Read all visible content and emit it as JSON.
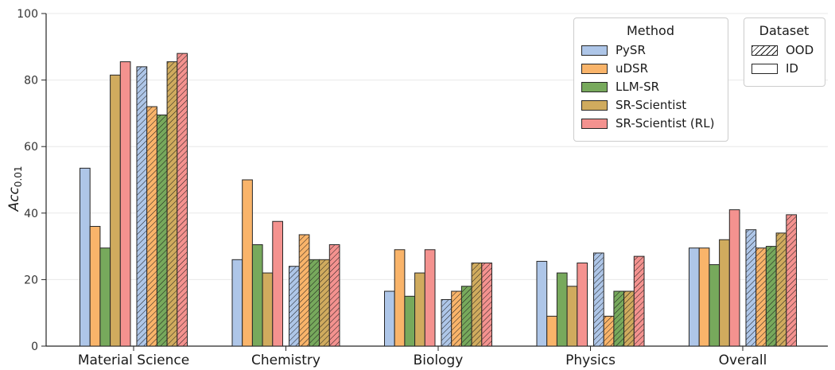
{
  "chart_data": {
    "type": "bar",
    "title": "",
    "ylabel_main": "Acc",
    "ylabel_sub": "0.01",
    "xlabel": "",
    "ylim": [
      0,
      100
    ],
    "yticks": [
      0,
      20,
      40,
      60,
      80,
      100
    ],
    "grid": "horizontal",
    "legend_position": "upper right",
    "categories": [
      "Material Science",
      "Chemistry",
      "Biology",
      "Physics",
      "Overall"
    ],
    "legend": {
      "method_title": "Method",
      "dataset_title": "Dataset",
      "datasets": [
        {
          "name": "OOD",
          "hatch": true
        },
        {
          "name": "ID",
          "hatch": false
        }
      ]
    },
    "dataset_layout_note": "ID plain bars form the left cluster of each category; OOD hatched bars form the right cluster",
    "series": [
      {
        "name": "PySR",
        "color": "#aec6e8",
        "values_id": [
          53.5,
          26,
          16.5,
          25.5,
          29.5
        ],
        "values_ood": [
          84,
          24,
          14,
          28,
          35
        ]
      },
      {
        "name": "uDSR",
        "color": "#f9b46a",
        "values_id": [
          36,
          50,
          29,
          9,
          29.5
        ],
        "values_ood": [
          72,
          33.5,
          16.5,
          9,
          29.5
        ]
      },
      {
        "name": "LLM-SR",
        "color": "#77a95c",
        "values_id": [
          29.5,
          30.5,
          15,
          22,
          24.5
        ],
        "values_ood": [
          69.5,
          26,
          18,
          16.5,
          30
        ]
      },
      {
        "name": "SR-Scientist",
        "color": "#d0ab5e",
        "values_id": [
          81.5,
          22,
          22,
          18,
          32
        ],
        "values_ood": [
          85.5,
          26,
          25,
          16.5,
          34
        ]
      },
      {
        "name": "SR-Scientist (RL)",
        "color": "#f4928f",
        "values_id": [
          85.5,
          37.5,
          29,
          25,
          41
        ],
        "values_ood": [
          88,
          30.5,
          25,
          27,
          39.5
        ]
      }
    ],
    "colors": {
      "bar_edge": "#262626",
      "grid_line": "#e8e8e8",
      "spine": "#262626",
      "tick_label": "#333333",
      "category_label": "#1a1a1a",
      "hatch": "#1a1a1a"
    }
  }
}
